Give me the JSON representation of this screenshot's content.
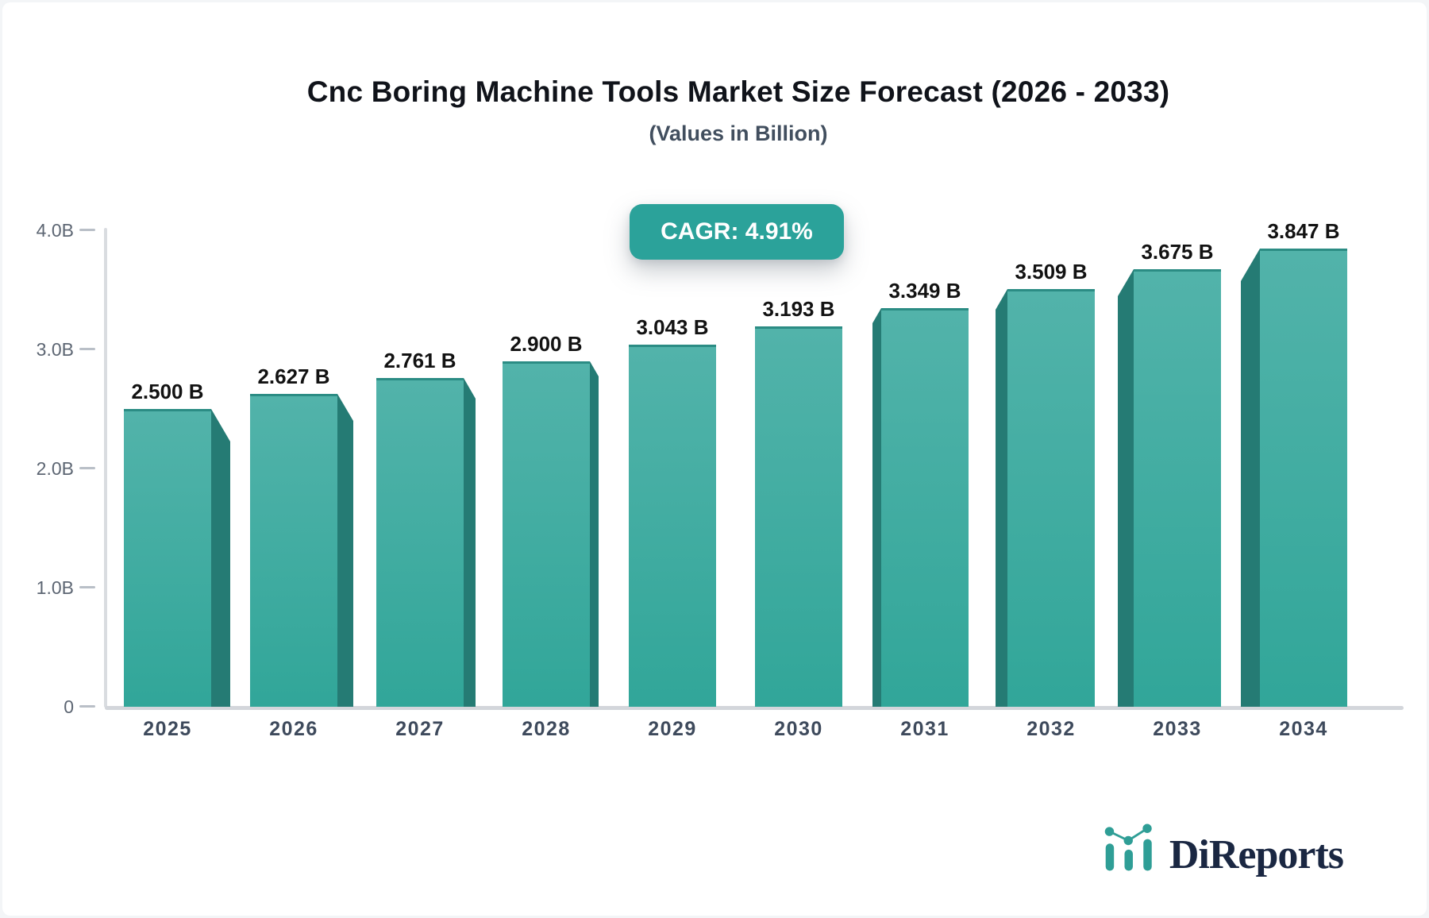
{
  "header": {
    "title": "Cnc Boring Machine Tools Market Size Forecast (2026 - 2033)",
    "subtitle": "(Values in Billion)",
    "cagr_label": "CAGR: 4.91%"
  },
  "chart_data": {
    "type": "bar",
    "title": "Cnc Boring Machine Tools Market Size Forecast (2026 - 2033)",
    "subtitle": "(Values in Billion)",
    "cagr": "4.91%",
    "categories": [
      "2025",
      "2026",
      "2027",
      "2028",
      "2029",
      "2030",
      "2031",
      "2032",
      "2033",
      "2034"
    ],
    "values": [
      2.5,
      2.627,
      2.761,
      2.9,
      3.043,
      3.193,
      3.349,
      3.509,
      3.675,
      3.847
    ],
    "value_labels": [
      "2.500 B",
      "2.627 B",
      "2.761 B",
      "2.900 B",
      "3.043 B",
      "3.193 B",
      "3.349 B",
      "3.509 B",
      "3.675 B",
      "3.847 B"
    ],
    "unit": "Billion",
    "ylim": [
      0,
      4.0
    ],
    "y_ticks": [
      {
        "value": 0,
        "label": "0"
      },
      {
        "value": 1,
        "label": "1.0B"
      },
      {
        "value": 2,
        "label": "2.0B"
      },
      {
        "value": 3,
        "label": "3.0B"
      },
      {
        "value": 4,
        "label": "4.0B"
      }
    ],
    "grid": false,
    "legend": false,
    "bar_style": "3d-perspective-teal"
  },
  "brand": {
    "name": "DiReports",
    "icon": "mini-bar-line-chart-icon"
  },
  "colors": {
    "bar_face_top": "#52b3aa",
    "bar_face_bottom": "#31a699",
    "bar_top_edge": "#2b8c84",
    "bar_side": "#257b74",
    "badge_bg": "#2ba29a",
    "badge_text": "#ffffff",
    "title_text": "#10131a",
    "subtitle_text": "#414e5e",
    "axis_label": "#5d6673",
    "x_label": "#3e4a5c",
    "value_label": "#121212",
    "axis_line": "#d9dce0",
    "tick_color": "#b9bfc7",
    "brand_navy": "#1a2742",
    "brand_teal": "#2f9e96"
  }
}
